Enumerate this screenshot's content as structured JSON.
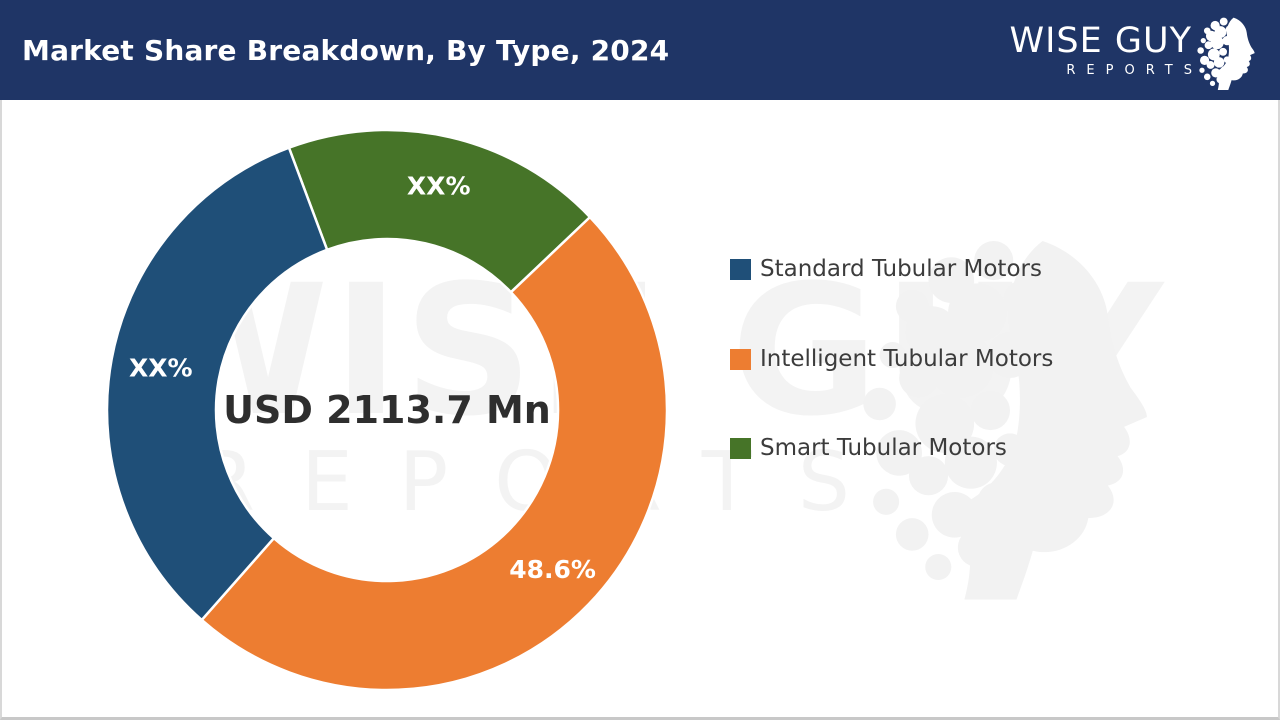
{
  "header": {
    "title": "Market Share Breakdown, By Type, 2024",
    "brand": {
      "name_line1": "WISE GUY",
      "name_line2": "REPORTS"
    }
  },
  "watermark": {
    "line1": "WISE GUY",
    "line2": "REPORTS"
  },
  "chart_data": {
    "type": "pie",
    "subtype": "donut",
    "title": "Market Share Breakdown, By Type, 2024",
    "center_label": "USD 2113.7 Mn",
    "units": "percent of market share",
    "start_angle_deg": 110.5,
    "clockwise": true,
    "legend_position": "right",
    "segments": [
      {
        "name": "Smart Tubular Motors",
        "label": "XX%",
        "value_pct": 18.6,
        "value_shown": false,
        "color": "#467428"
      },
      {
        "name": "Intelligent Tubular Motors",
        "label": "48.6%",
        "value_pct": 48.6,
        "value_shown": true,
        "color": "#ed7d31"
      },
      {
        "name": "Standard Tubular Motors",
        "label": "XX%",
        "value_pct": 32.8,
        "value_shown": false,
        "color": "#1f4f78"
      }
    ],
    "legend_order": [
      2,
      1,
      0
    ]
  },
  "colors": {
    "header_bg": "#1f3566",
    "center_text": "#2e2e2e",
    "segment_label_text": "#ffffff",
    "legend_text": "#3c3c3c",
    "watermark": "#f3f3f3",
    "content_border": "#c8c8c8"
  }
}
